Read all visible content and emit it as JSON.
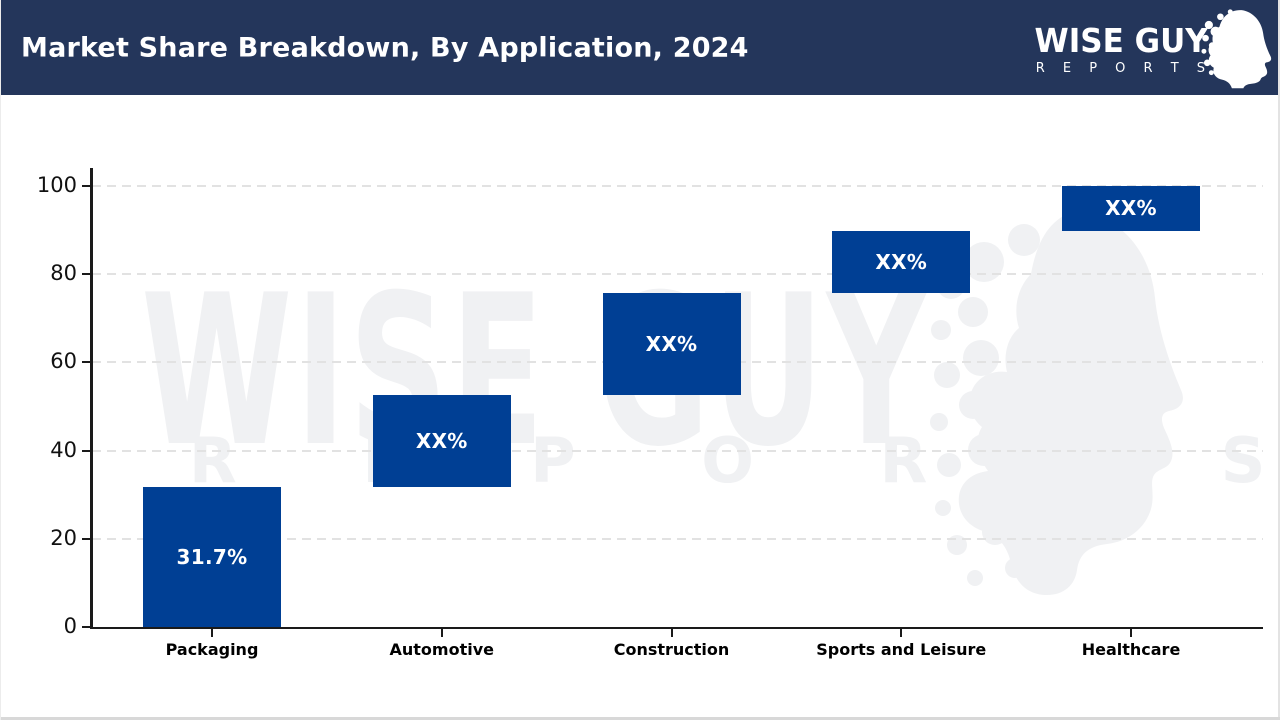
{
  "header": {
    "title": "Market Share Breakdown, By Application, 2024",
    "bg_color": "#24365B",
    "logo": {
      "name_line": "WISE GUY",
      "sub_line": "R E P O R T S"
    }
  },
  "watermark": {
    "name_line": "WISE GUY",
    "sub_line": "R E P O R T S"
  },
  "chart_data": {
    "type": "bar",
    "variant": "waterfall",
    "title": "Market Share Breakdown, By Application, 2024",
    "categories": [
      "Packaging",
      "Automotive",
      "Construction",
      "Sports and Leisure",
      "Healthcare"
    ],
    "series": [
      {
        "name": "Market Share (%)",
        "segments": [
          {
            "category": "Packaging",
            "start": 0,
            "end": 31.7,
            "label": "31.7%"
          },
          {
            "category": "Automotive",
            "start": 31.7,
            "end": 52.7,
            "label": "XX%"
          },
          {
            "category": "Construction",
            "start": 52.7,
            "end": 75.7,
            "label": "XX%"
          },
          {
            "category": "Sports and Leisure",
            "start": 75.7,
            "end": 89.8,
            "label": "XX%"
          },
          {
            "category": "Healthcare",
            "start": 89.8,
            "end": 100,
            "label": "XX%"
          }
        ]
      }
    ],
    "ylim": [
      0,
      100
    ],
    "yticks": [
      0,
      20,
      40,
      60,
      80,
      100
    ],
    "grid": "horizontal-dashed",
    "legend": "none",
    "bar_color": "#003F94",
    "bar_label_color": "#FFFFFF"
  }
}
